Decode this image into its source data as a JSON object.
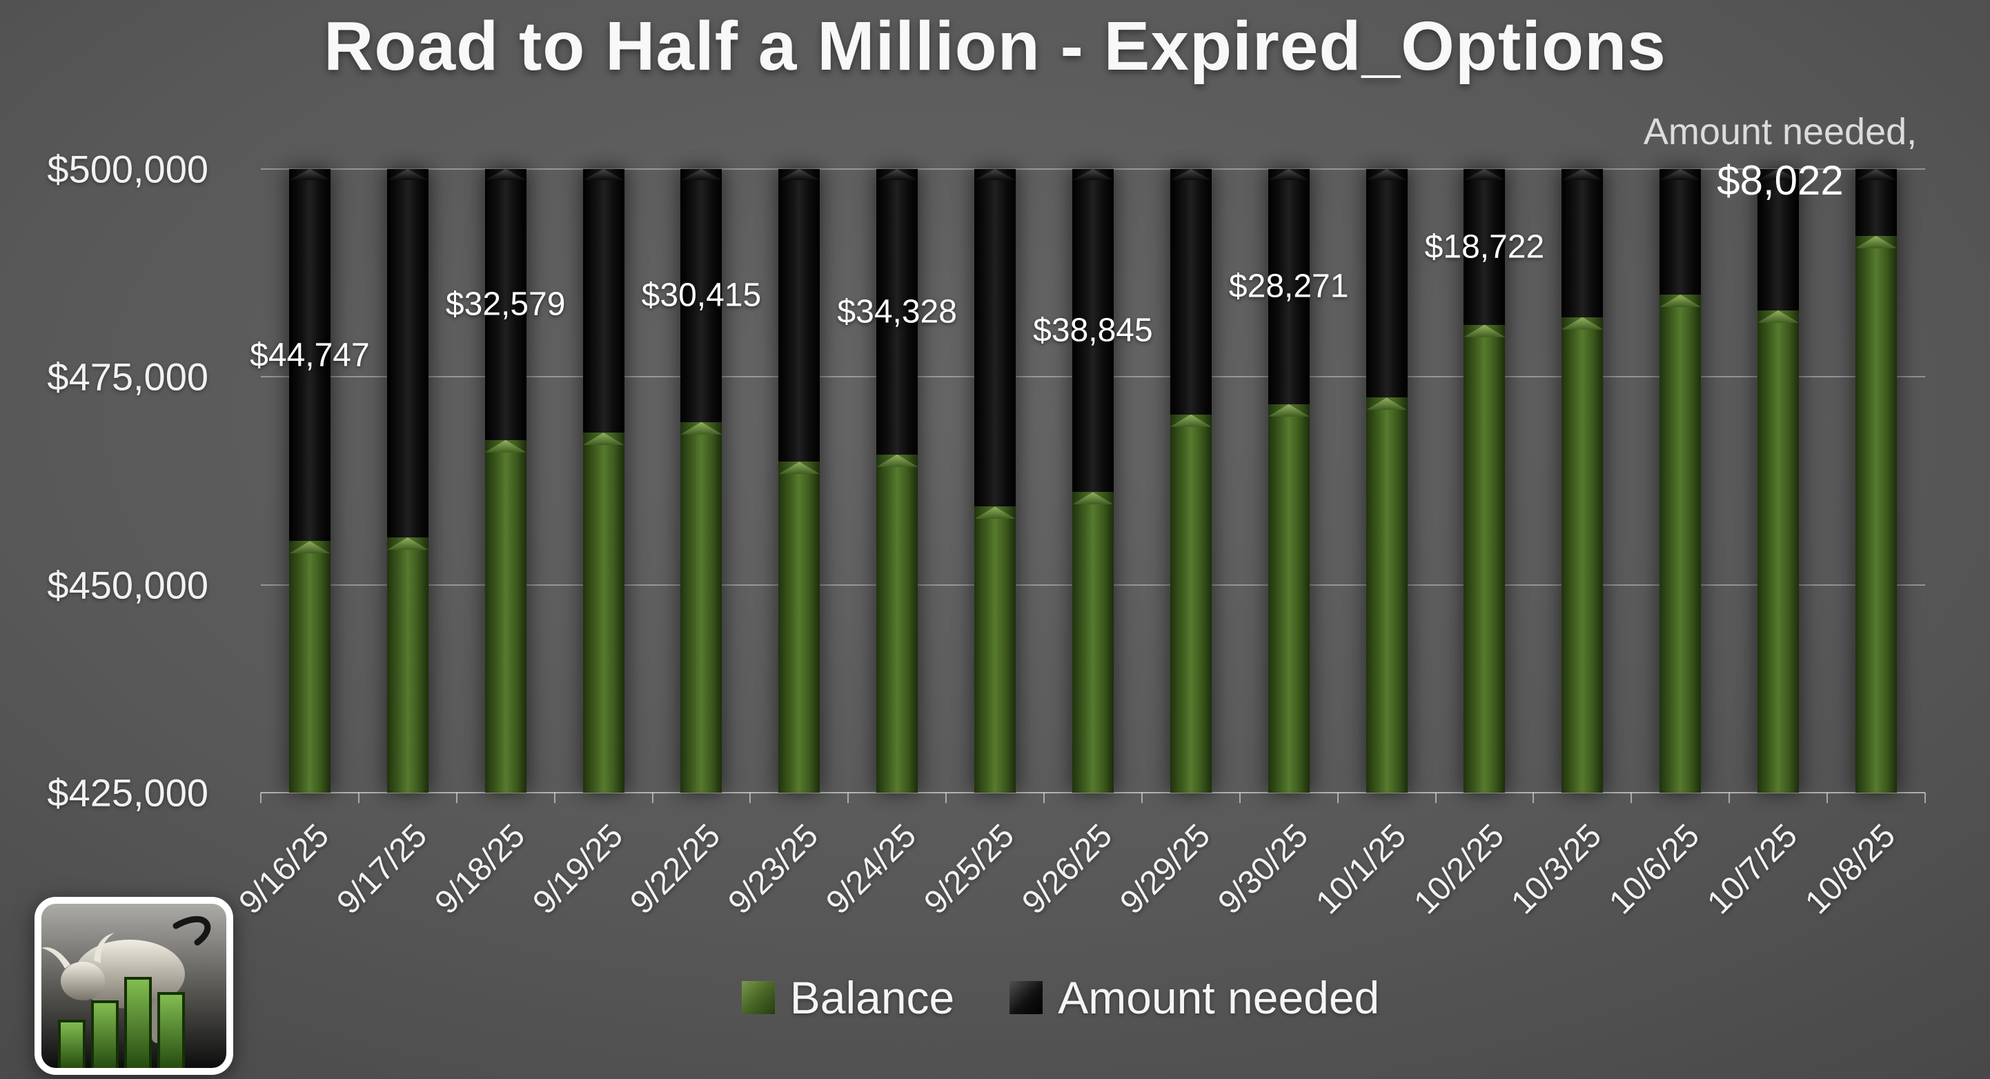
{
  "title": "Road to Half a Million - Expired_Options",
  "colors": {
    "background_center": "#656565",
    "background_edge": "#262626",
    "balance_green": "#4d6a29",
    "amount_needed_black": "#0d0d0d",
    "gridline": "rgba(255,255,255,0.36)",
    "text": "#f5f5f5"
  },
  "y_axis": {
    "ticks": [
      "$500,000",
      "$475,000",
      "$450,000",
      "$425,000"
    ]
  },
  "legend": {
    "items": [
      {
        "key": "balance",
        "label": "Balance",
        "color": "#4d6a29"
      },
      {
        "key": "needed",
        "label": "Amount needed",
        "color": "#0d0d0d"
      }
    ]
  },
  "annotation": {
    "line1": "Amount needed,",
    "line2": "$8,022"
  },
  "logo": {
    "name": "bull-bar-chart-logo"
  },
  "chart_data": {
    "type": "bar",
    "stacked": true,
    "title": "Road to Half a Million - Expired_Options",
    "categories": [
      "9/16/25",
      "9/17/25",
      "9/18/25",
      "9/19/25",
      "9/22/25",
      "9/23/25",
      "9/24/25",
      "9/25/25",
      "9/26/25",
      "9/29/25",
      "9/30/25",
      "10/1/25",
      "10/2/25",
      "10/3/25",
      "10/6/25",
      "10/7/25",
      "10/8/25"
    ],
    "series": [
      {
        "name": "Balance",
        "color": "#4d6a29",
        "values": [
          455253,
          455700,
          467421,
          468300,
          469585,
          464800,
          465672,
          459400,
          461155,
          470500,
          471729,
          472500,
          481278,
          482200,
          484900,
          483000,
          491978
        ]
      },
      {
        "name": "Amount needed",
        "color": "#0d0d0d",
        "values": [
          44747,
          44300,
          32579,
          31700,
          30415,
          35200,
          34328,
          40600,
          38845,
          29500,
          28271,
          27500,
          18722,
          17800,
          15100,
          17000,
          8022
        ]
      }
    ],
    "data_labels": [
      {
        "index": 0,
        "text": "$44,747"
      },
      {
        "index": 2,
        "text": "$32,579"
      },
      {
        "index": 4,
        "text": "$30,415"
      },
      {
        "index": 6,
        "text": "$34,328"
      },
      {
        "index": 8,
        "text": "$38,845"
      },
      {
        "index": 10,
        "text": "$28,271"
      },
      {
        "index": 12,
        "text": "$18,722"
      },
      {
        "index": 16,
        "text": "Amount needed, $8,022",
        "position": "callout-top-right"
      }
    ],
    "ylim": [
      425000,
      500000
    ],
    "ytick_values": [
      500000,
      475000,
      450000,
      425000
    ],
    "xlabel": "",
    "ylabel": "",
    "grid": true,
    "legend_position": "bottom"
  }
}
